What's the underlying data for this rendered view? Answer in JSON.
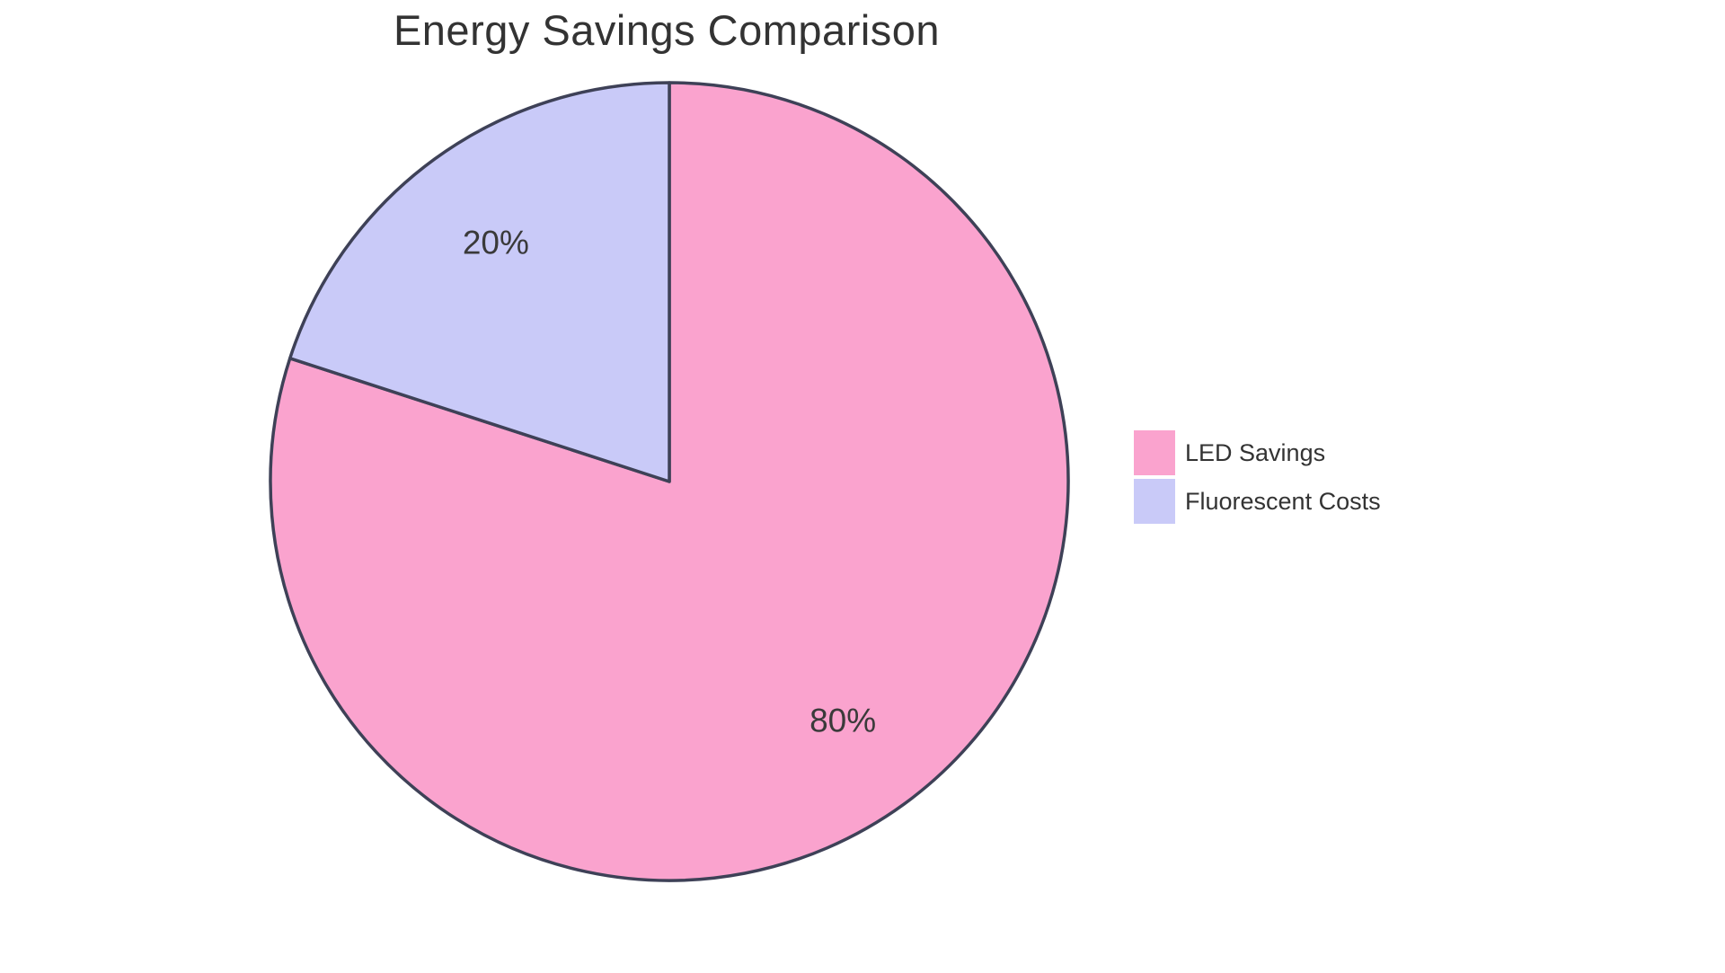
{
  "chart_data": {
    "type": "pie",
    "title": "Energy Savings Comparison",
    "slices": [
      {
        "label": "LED Savings",
        "value": 80,
        "percent_label": "80%",
        "color": "#FAA3CE"
      },
      {
        "label": "Fluorescent Costs",
        "value": 20,
        "percent_label": "20%",
        "color": "#C9CAF8"
      }
    ],
    "start_angle_deg": 0,
    "direction": "clockwise",
    "legend_position": "right",
    "colors": {
      "stroke": "#3E4157",
      "text": "#333333",
      "background": "#FFFFFF"
    }
  }
}
